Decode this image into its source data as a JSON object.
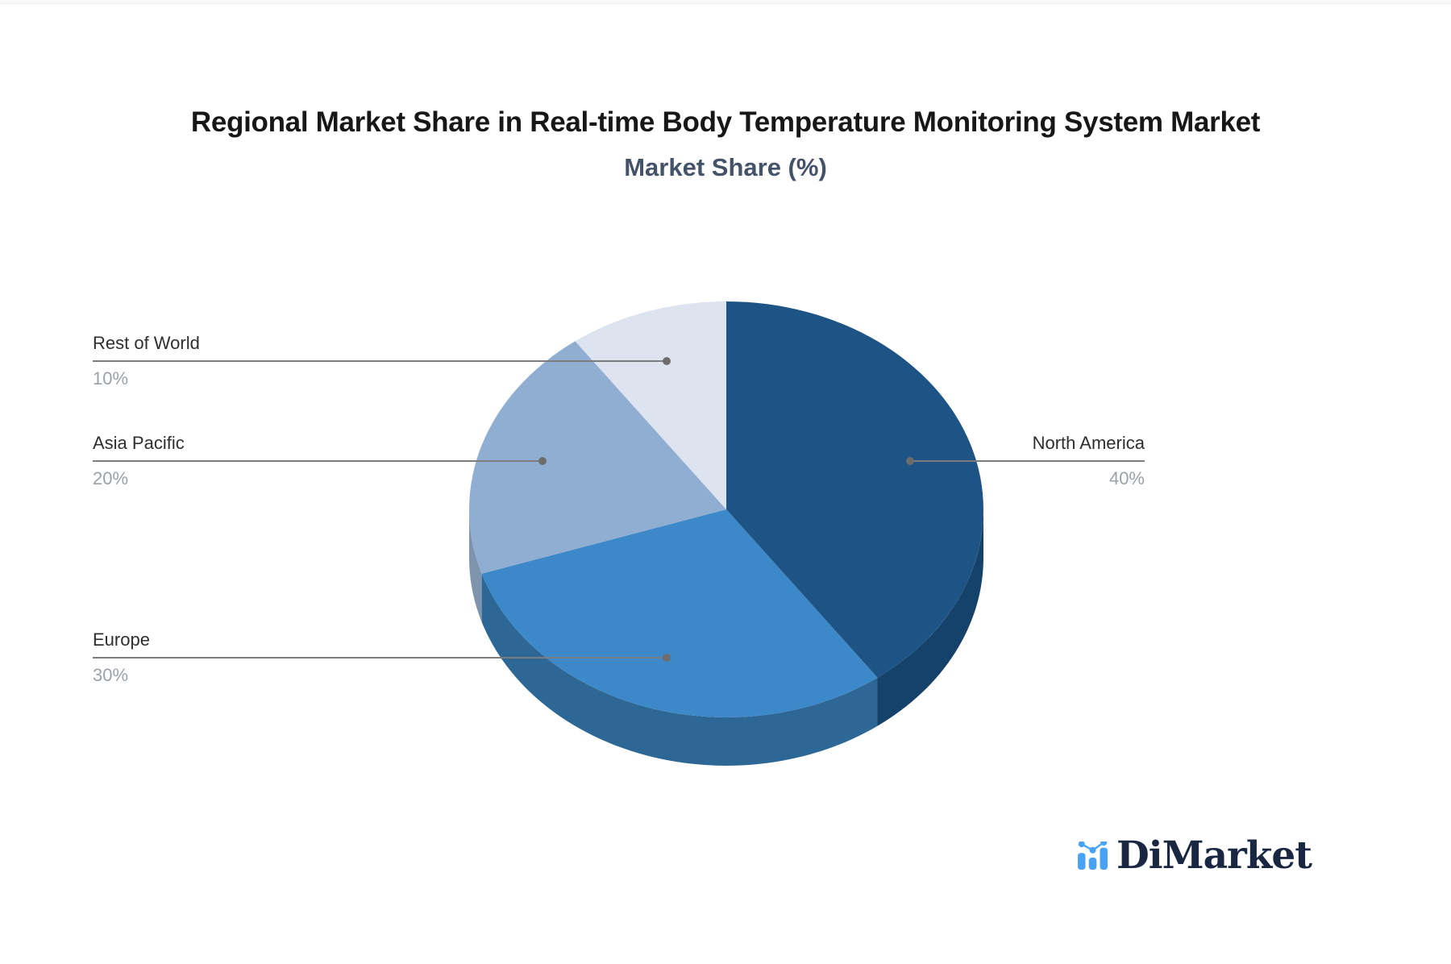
{
  "header": {
    "title": "Regional Market Share in Real-time Body Temperature Monitoring System Market",
    "subtitle": "Market Share (%)"
  },
  "chart_data": {
    "type": "pie",
    "style": "3d-pie",
    "title": "Regional Market Share in Real-time Body Temperature Monitoring System Market",
    "subtitle": "Market Share (%)",
    "unit": "%",
    "direction": "clockwise",
    "start_angle_deg": 0,
    "grid": false,
    "legend_position": "callout-labels",
    "slices": [
      {
        "label": "North America",
        "value": 40,
        "pct_text": "40%",
        "color_top": "#1D5485",
        "color_side": "#15426A"
      },
      {
        "label": "Europe",
        "value": 30,
        "pct_text": "30%",
        "color_top": "#3C88C8",
        "color_side": "#2D6796"
      },
      {
        "label": "Asia Pacific",
        "value": 20,
        "pct_text": "20%",
        "color_top": "#90AED2",
        "color_side": "#7E93AC"
      },
      {
        "label": "Rest of World",
        "value": 10,
        "pct_text": "10%",
        "color_top": "#DDE4EF",
        "color_side": "#C6CFDE"
      }
    ],
    "label_color": "#2E2E2E",
    "pct_color": "#9BA1A8",
    "line_color": "#7D7D7D",
    "dot_color": "#6D6D6D"
  },
  "logo": {
    "text": "DiMarket",
    "icon": "bar-line-chart-icon",
    "color_text": "#1A2742",
    "color_icon": "#4AA2F5"
  }
}
